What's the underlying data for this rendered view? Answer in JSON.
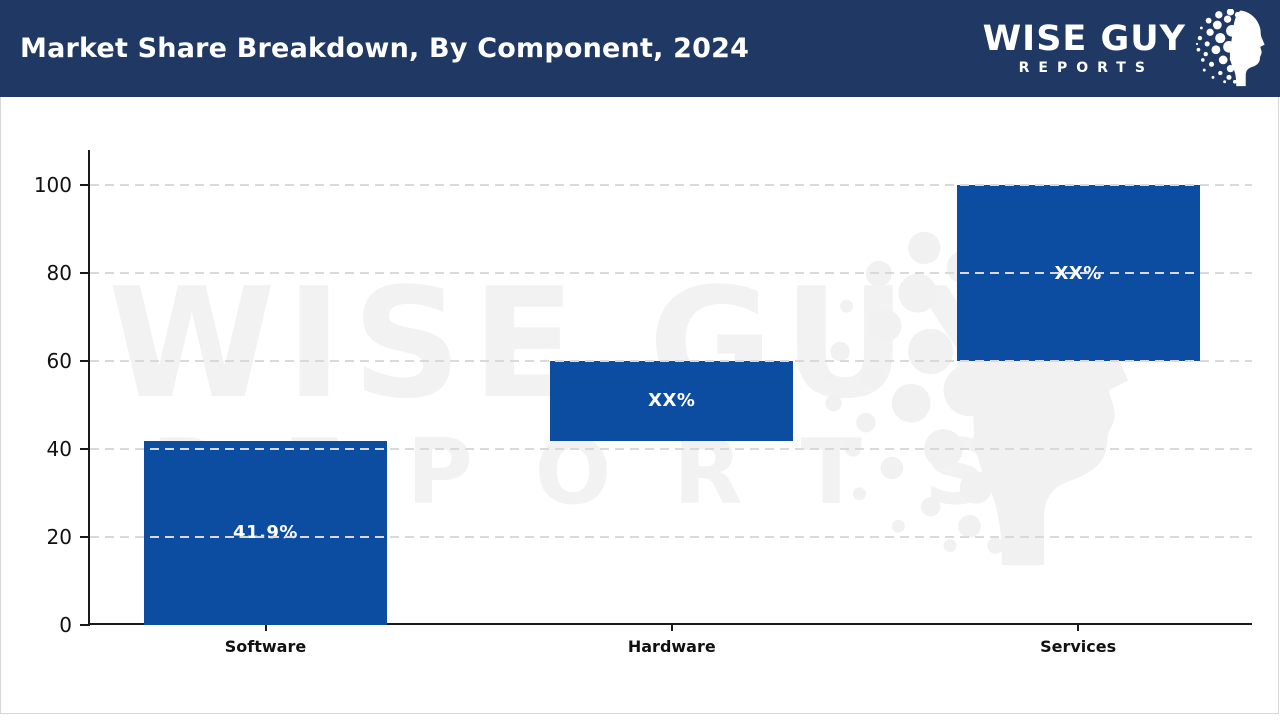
{
  "header": {
    "title": "Market Share Breakdown, By Component, 2024",
    "logo": {
      "line1": "WISE GUY",
      "line2": "REPORTS"
    }
  },
  "watermark": {
    "line1": "WISE GUY",
    "line2": "REPORTS"
  },
  "chart_data": {
    "type": "bar",
    "subtype": "waterfall-breakdown",
    "title": "Market Share Breakdown, By Component, 2024",
    "categories": [
      "Software",
      "Hardware",
      "Services"
    ],
    "segments": [
      {
        "category": "Software",
        "start": 0,
        "end": 41.9,
        "label": "41.9%"
      },
      {
        "category": "Hardware",
        "start": 41.9,
        "end": 60,
        "label": "XX%"
      },
      {
        "category": "Services",
        "start": 60,
        "end": 100,
        "label": "XX%"
      }
    ],
    "yticks": [
      0,
      20,
      40,
      60,
      80,
      100
    ],
    "ylim": [
      0,
      108
    ],
    "xlabel": "",
    "ylabel": "",
    "grid": "horizontal-dashed",
    "legend": "none",
    "bar_color": "#0c4da2",
    "bar_label_color": "#ffffff",
    "axis_color": "#1a1a1a",
    "grid_color": "#d9d9d9",
    "header_color": "#1f3864",
    "watermark_color": "#f2f2f2"
  }
}
